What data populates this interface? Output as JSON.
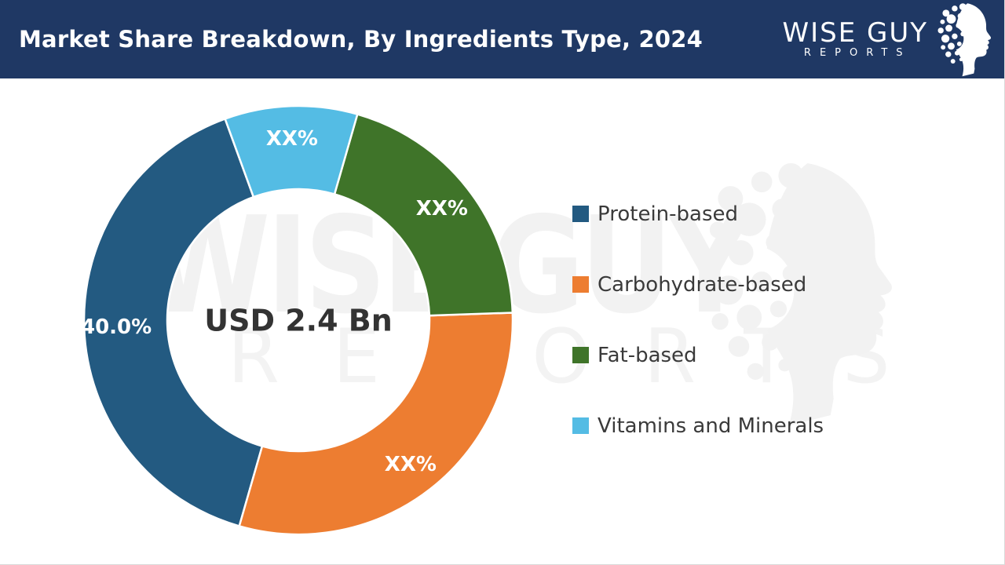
{
  "header": {
    "title": "Market Share Breakdown, By Ingredients Type, 2024",
    "logo": {
      "brand_line1": "WISE GUY",
      "brand_line2": "REPORTS"
    }
  },
  "watermark": {
    "line1": "WISE GUY",
    "line2": "REPORTS"
  },
  "colors": {
    "header_background": "#1F3864",
    "watermark_gray": "#F2F2F2",
    "segment_border": "#FFFFFF",
    "center_label_text": "#333333",
    "legend_text": "#3A3A3A"
  },
  "chart_data": {
    "type": "pie",
    "subtype": "donut",
    "title": "Market Share Breakdown, By Ingredients Type, 2024",
    "center_label": "USD 2.4 Bn",
    "start_angle_deg": -20,
    "direction": "counterclockwise",
    "donut_hole_ratio": 0.61,
    "label_radius_ratio": 0.85,
    "legend_position": "right",
    "segments": [
      {
        "name": "Protein-based",
        "value": 40,
        "display_label": "40.0%",
        "color": "#235A81"
      },
      {
        "name": "Carbohydrate-based",
        "value": 30,
        "display_label": "XX%",
        "color": "#ED7D31"
      },
      {
        "name": "Fat-based",
        "value": 20,
        "display_label": "XX%",
        "color": "#3F7429"
      },
      {
        "name": "Vitamins and Minerals",
        "value": 10,
        "display_label": "XX%",
        "color": "#54BCE4"
      }
    ]
  }
}
